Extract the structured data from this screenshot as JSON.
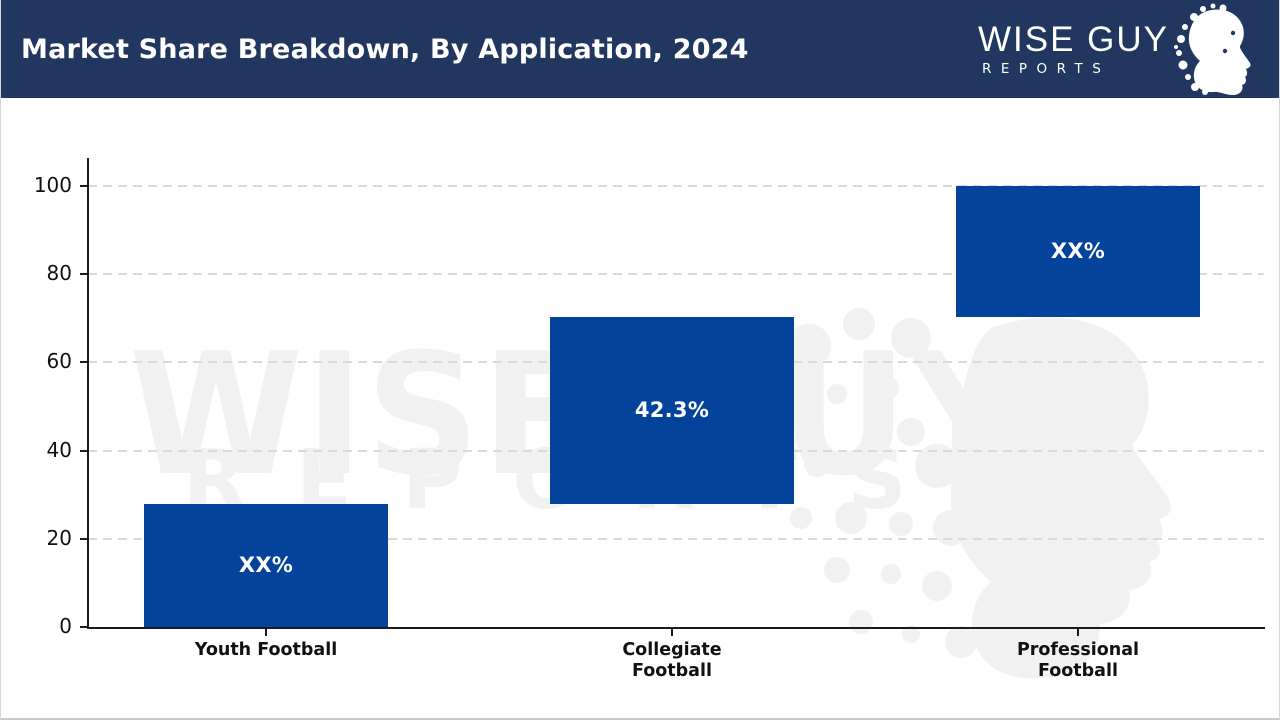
{
  "header": {
    "title": "Market Share Breakdown, By Application, 2024",
    "bg_color": "#213760",
    "logo_line1": "WISE GUY",
    "logo_line2": "REPORTS"
  },
  "watermark": {
    "line1": "WISE GUY",
    "line2": "REPORTS"
  },
  "chart_data": {
    "type": "bar",
    "subtype": "floating-segment-waterfall",
    "title": "Market Share Breakdown, By Application, 2024",
    "categories": [
      "Youth Football",
      "Collegiate Football",
      "Professional Football"
    ],
    "category_label_lines": [
      [
        "Youth Football"
      ],
      [
        "Collegiate",
        "Football"
      ],
      [
        "Professional",
        "Football"
      ]
    ],
    "segments": [
      {
        "category": "Youth Football",
        "start": 0,
        "end": 28,
        "label": "XX%"
      },
      {
        "category": "Collegiate Football",
        "start": 28,
        "end": 70.3,
        "label": "42.3%"
      },
      {
        "category": "Professional Football",
        "start": 70.3,
        "end": 100,
        "label": "XX%"
      }
    ],
    "bar_color": "#04439b",
    "label_color": "#ffffff",
    "yticks": [
      0,
      20,
      40,
      60,
      80,
      100
    ],
    "ylim": [
      0,
      106
    ],
    "xlabel": "",
    "ylabel": "",
    "grid": "horizontal-dashed",
    "legend": "none"
  }
}
